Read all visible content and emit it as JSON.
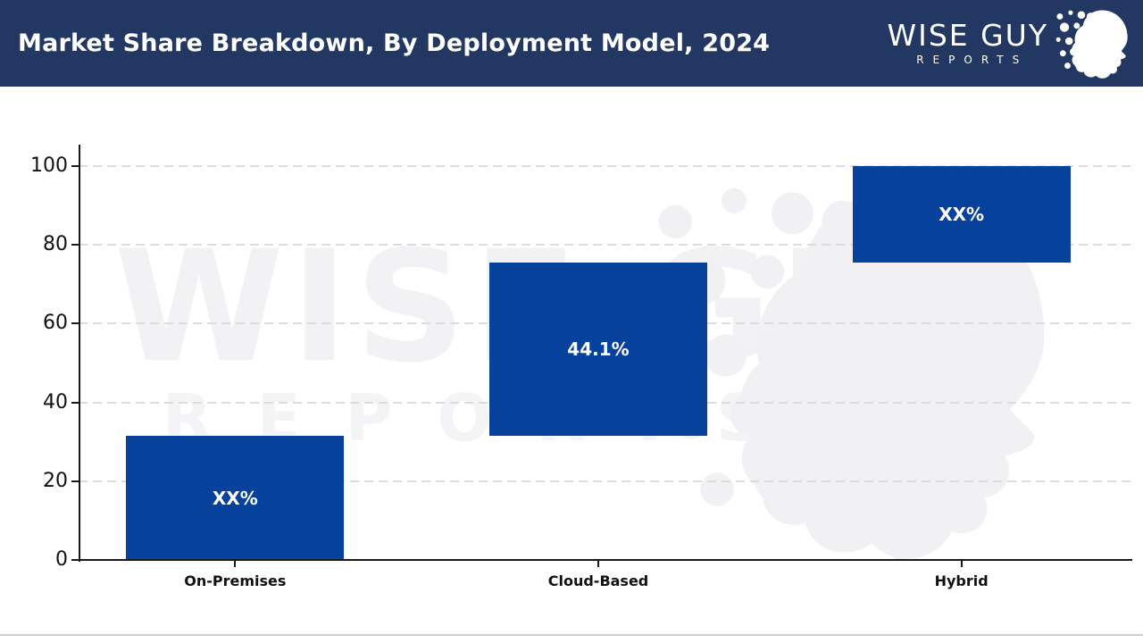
{
  "header": {
    "title": "Market Share Breakdown, By Deployment Model, 2024",
    "bg_color": "#223862",
    "logo": {
      "wordmark": "WISE GUY",
      "subtext": "REPORTS"
    }
  },
  "watermark": {
    "wordmark": "WISE GUY",
    "subtext": "REPORTS"
  },
  "chart_data": {
    "type": "bar",
    "variant": "floating-segment-waterfall",
    "title": "Market Share Breakdown, By Deployment Model, 2024",
    "categories": [
      "On-Premises",
      "Cloud-Based",
      "Hybrid"
    ],
    "bars": [
      {
        "category": "On-Premises",
        "start": 0,
        "end": 31.5,
        "label": "XX%"
      },
      {
        "category": "Cloud-Based",
        "start": 31.5,
        "end": 75.6,
        "label": "44.1%"
      },
      {
        "category": "Hybrid",
        "start": 75.6,
        "end": 100,
        "label": "XX%"
      }
    ],
    "ylim": [
      0,
      100
    ],
    "yticks": [
      0,
      20,
      40,
      60,
      80,
      100
    ],
    "xlabel": "",
    "ylabel": "",
    "grid": "horizontal-dashed",
    "legend": "none",
    "bar_color": "#06419c",
    "bar_label_color": "#ffffff",
    "axis_color": "#1a1a1a",
    "gridline_color": "#dcdcdc"
  }
}
